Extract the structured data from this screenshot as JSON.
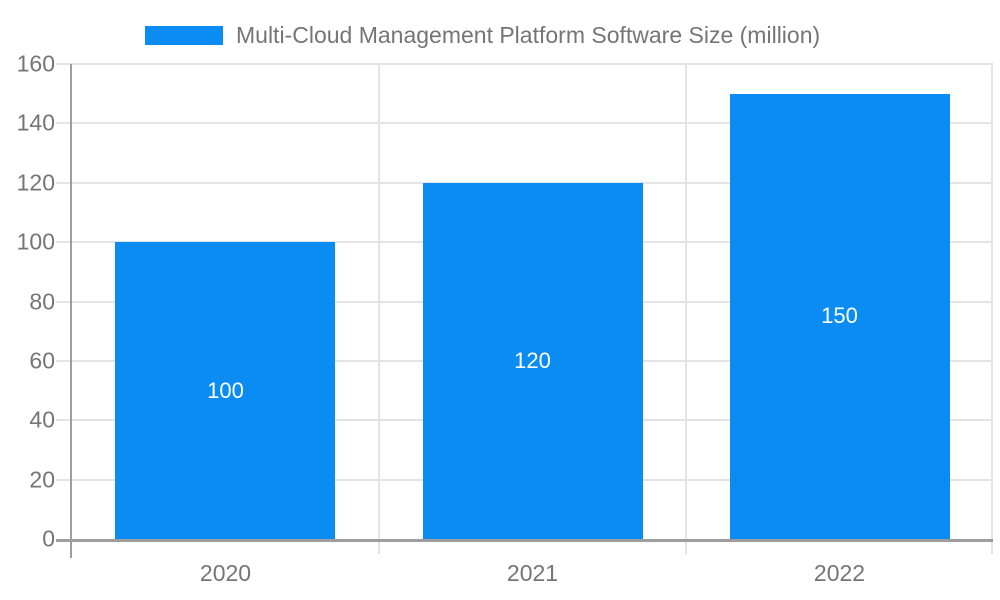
{
  "legend": {
    "label": "Multi-Cloud Management Platform Software Size (million)",
    "position": "top"
  },
  "chart_data": {
    "type": "bar",
    "title": "Multi-Cloud Management Platform Software Size (million)",
    "categories": [
      "2020",
      "2021",
      "2022"
    ],
    "series": [
      {
        "name": "Multi-Cloud Management Platform Software Size (million)",
        "values": [
          100,
          120,
          150
        ]
      }
    ],
    "values": [
      100,
      120,
      150
    ],
    "data_labels": [
      "100",
      "120",
      "150"
    ],
    "xlabel": "",
    "ylabel": "",
    "ylim": [
      0,
      160
    ],
    "yticks": [
      0,
      20,
      40,
      60,
      80,
      100,
      120,
      140,
      160
    ],
    "grid": true,
    "legend_position": "top",
    "colors": {
      "bar": "#0b8cf2",
      "data_label": "#ffffff",
      "axis_line": "#9e9e9e",
      "gridline": "#e4e4e4",
      "tick_label": "#757575",
      "legend_text": "#757575",
      "background": "#ffffff"
    }
  }
}
